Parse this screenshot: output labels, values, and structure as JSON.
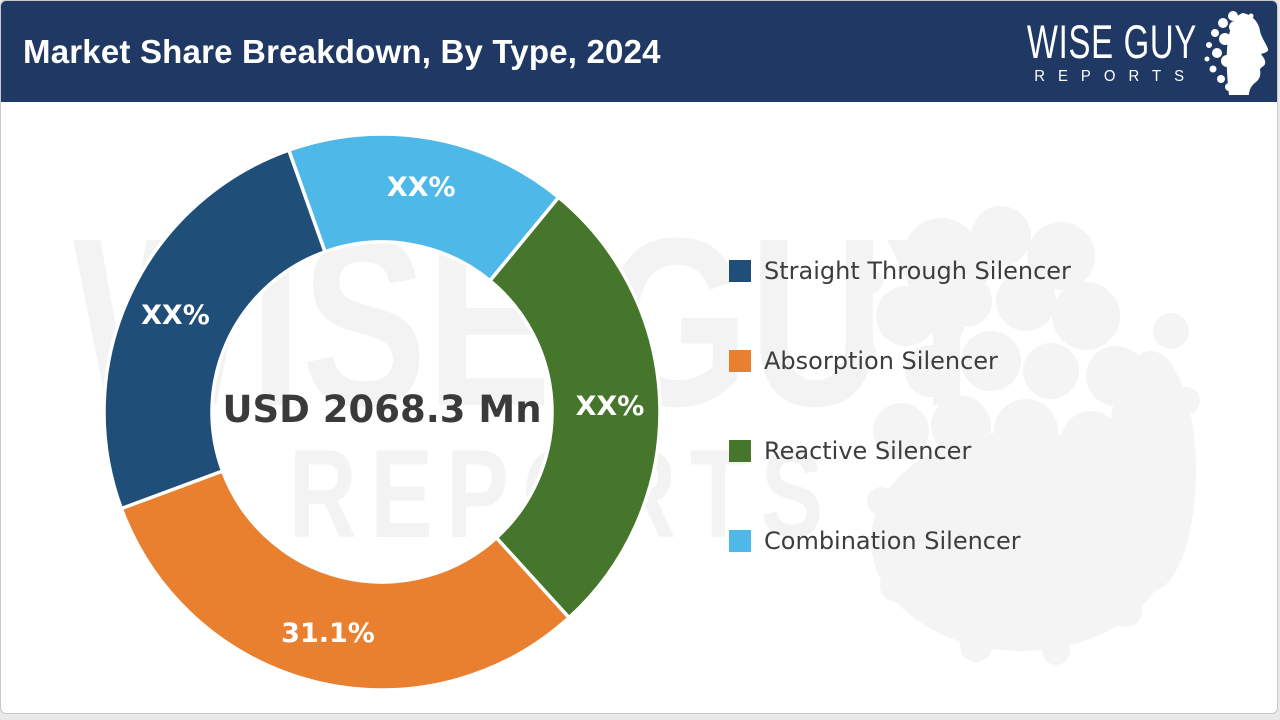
{
  "header": {
    "title": "Market Share Breakdown, By Type, 2024",
    "bg_color": "#203864",
    "logo": {
      "line1": "WISE GUY",
      "line2": "REPORTS"
    }
  },
  "watermark": {
    "line1": "WISE GUY",
    "line2": "REPORTS"
  },
  "chart_data": {
    "type": "donut",
    "title": "Market Share Breakdown, By Type, 2024",
    "center_label": "USD 2068.3 Mn",
    "total": {
      "currency": "USD",
      "value": 2068.3,
      "unit": "Mn"
    },
    "slices": [
      {
        "name": "Straight Through Silencer",
        "value_pct": 25.2,
        "display_label": "XX%",
        "color": "#1f4e79"
      },
      {
        "name": "Absorption Silencer",
        "value_pct": 31.1,
        "display_label": "31.1%",
        "color": "#e8802f"
      },
      {
        "name": "Reactive Silencer",
        "value_pct": 27.3,
        "display_label": "XX%",
        "color": "#46762b"
      },
      {
        "name": "Combination Silencer",
        "value_pct": 16.4,
        "display_label": "XX%",
        "color": "#4eb9e8"
      }
    ],
    "layout": {
      "start_angle_deg_from_top": -19.6,
      "direction": "clockwise",
      "slice_draw_order": "reversed",
      "inner_radius_ratio": 0.61,
      "legend_position": "right",
      "slice_label_color": "#ffffff"
    }
  }
}
